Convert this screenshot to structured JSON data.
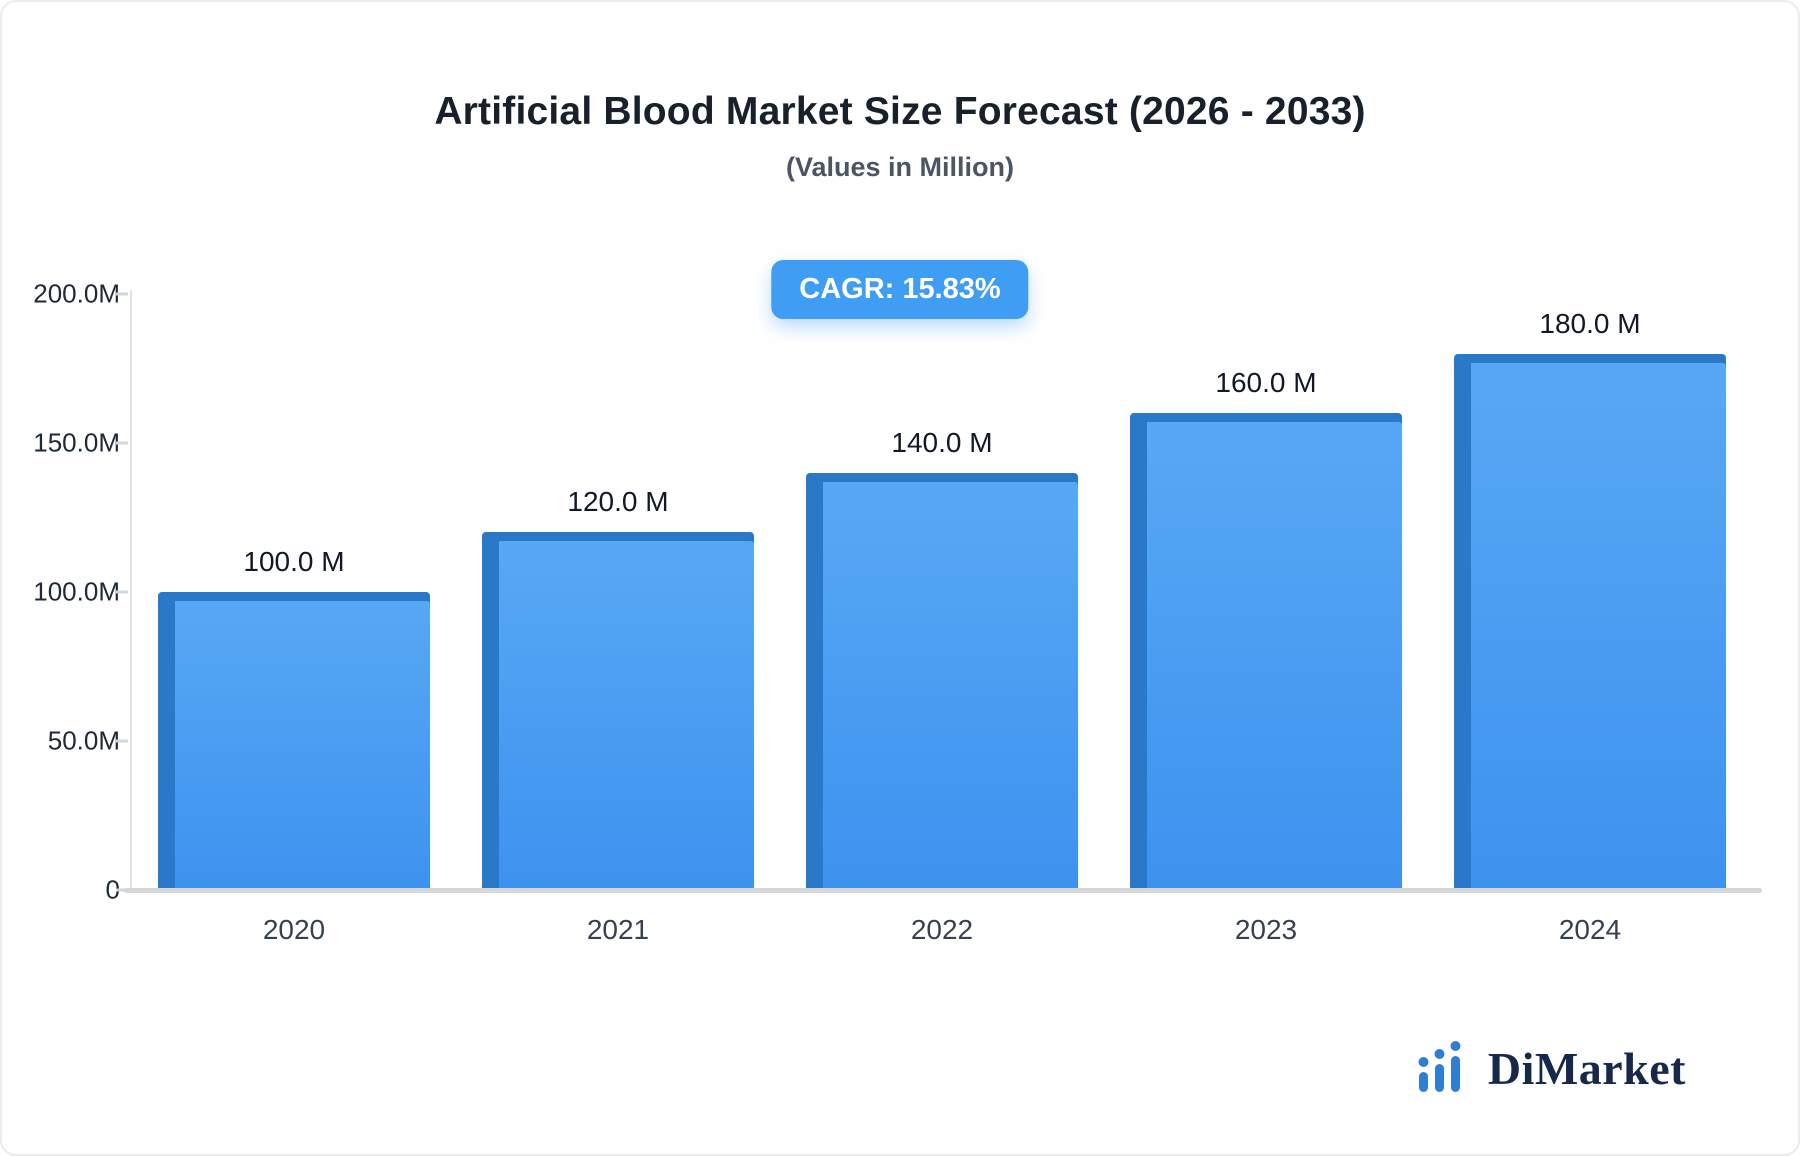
{
  "header": {
    "title": "Artificial Blood Market Size Forecast (2026 - 2033)",
    "subtitle": "(Values in Million)"
  },
  "badge": {
    "label": "CAGR: 15.83%",
    "bg": "#3f9ef3"
  },
  "chart_data": {
    "type": "bar",
    "categories": [
      "2020",
      "2021",
      "2022",
      "2023",
      "2024"
    ],
    "values": [
      100,
      120,
      140,
      160,
      180
    ],
    "value_labels": [
      "100.0 M",
      "120.0 M",
      "140.0 M",
      "160.0 M",
      "180.0 M"
    ],
    "title": "Artificial Blood Market Size Forecast (2026 - 2033)",
    "xlabel": "",
    "ylabel": "",
    "ylim": [
      0,
      200
    ],
    "yticks": [
      {
        "value": 0,
        "label": "0"
      },
      {
        "value": 50,
        "label": "50.0M"
      },
      {
        "value": 100,
        "label": "100.0M"
      },
      {
        "value": 150,
        "label": "150.0M"
      },
      {
        "value": 200,
        "label": "200.0M"
      }
    ],
    "grid": false,
    "legend": false,
    "colors": {
      "face_top": "#57a8f4",
      "face_bottom": "#3e92ef",
      "side": "#2a79c9"
    }
  },
  "logo": {
    "text": "DiMarket",
    "icon": "bar-chart-dots-icon",
    "icon_color": "#2e7fd4",
    "text_color": "#16294a"
  }
}
